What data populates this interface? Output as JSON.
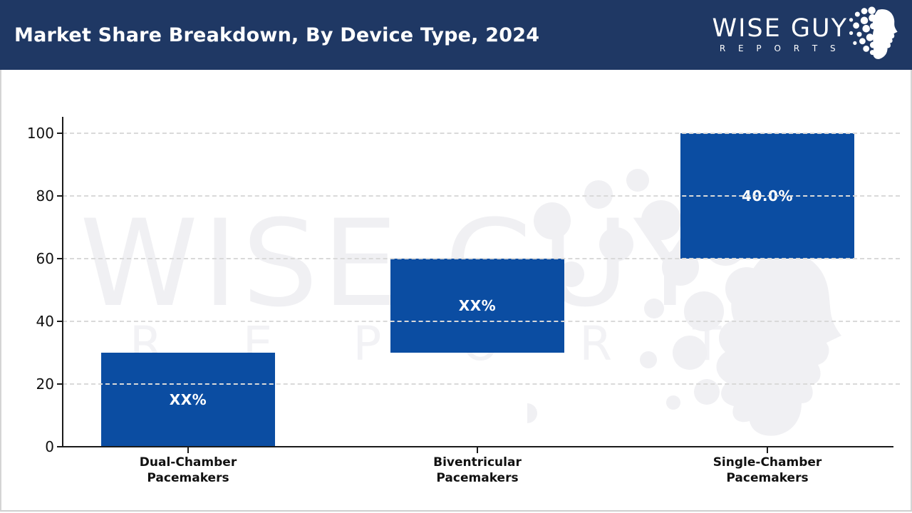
{
  "header": {
    "title": "Market Share Breakdown, By Device Type, 2024",
    "bg_color": "#1f3864",
    "logo": {
      "name": "WISE GUY",
      "sub": "R E P O R T S"
    }
  },
  "watermark": {
    "name": "WISE GUY",
    "sub": "R E P O R T S"
  },
  "chart_data": {
    "type": "bar",
    "variant": "stacked-waterfall",
    "title": "Market Share Breakdown, By Device Type, 2024",
    "categories": [
      {
        "line1": "Dual-Chamber",
        "line2": "Pacemakers"
      },
      {
        "line1": "Biventricular",
        "line2": "Pacemakers"
      },
      {
        "line1": "Single-Chamber",
        "line2": "Pacemakers"
      }
    ],
    "bars": [
      {
        "category": "Dual-Chamber Pacemakers",
        "start": 0,
        "end": 30,
        "value_label": "XX%"
      },
      {
        "category": "Biventricular Pacemakers",
        "start": 30,
        "end": 60,
        "value_label": "XX%"
      },
      {
        "category": "Single-Chamber Pacemakers",
        "start": 60,
        "end": 100,
        "value_label": "40.0%"
      }
    ],
    "yticks": [
      "0",
      "20",
      "40",
      "60",
      "80",
      "100"
    ],
    "ylim": [
      0,
      105
    ],
    "xlabel": "",
    "ylabel": "",
    "grid": "horizontal-dashed",
    "legend": "none",
    "bar_color": "#0b4da2",
    "axis_color": "#1a1a1a",
    "gridline_color": "#d9d9d9"
  }
}
